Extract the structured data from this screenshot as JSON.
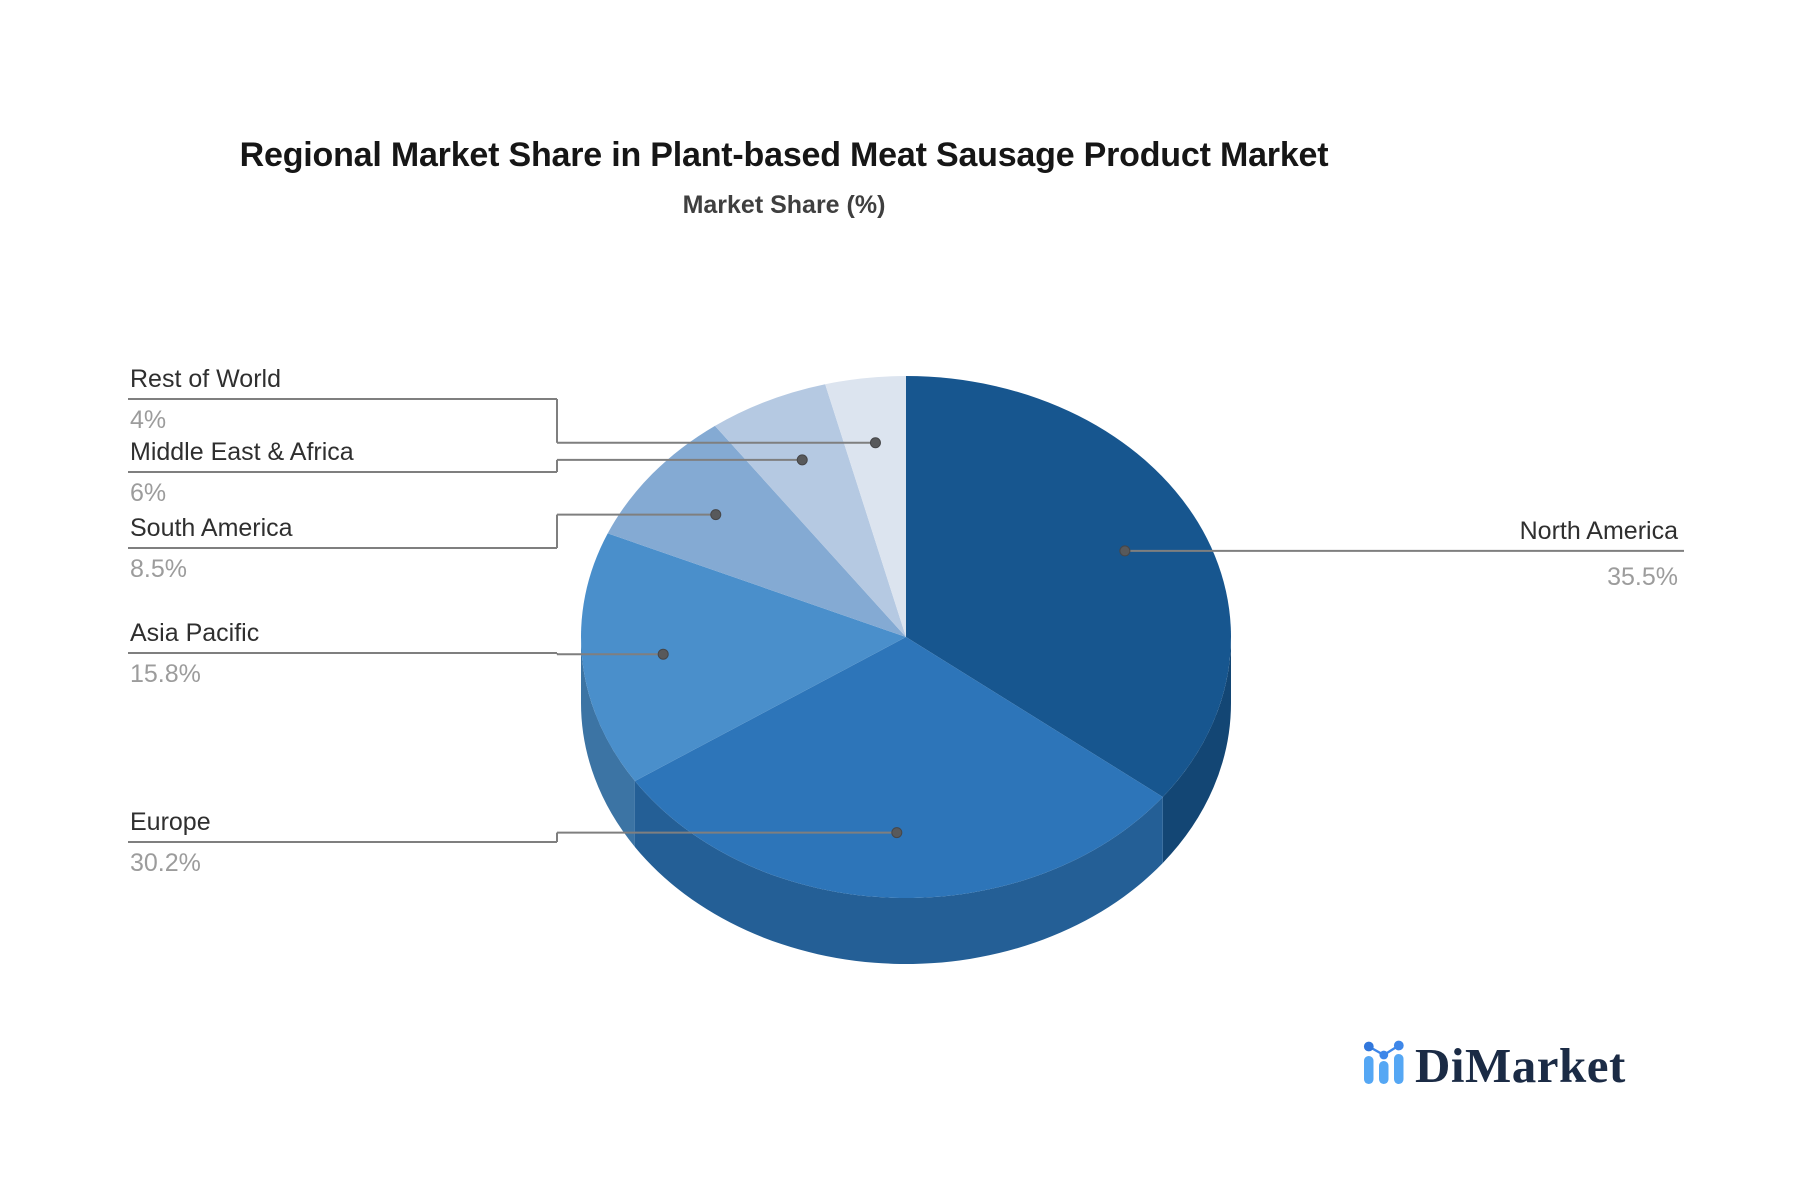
{
  "chart": {
    "title": "Regional Market Share in Plant-based Meat Sausage Product Market",
    "subtitle": "Market Share (%)",
    "chart_data": {
      "type": "pie",
      "style_3d": true,
      "unit": "%",
      "start_angle_deg": 0,
      "direction": "clockwise",
      "legend": "none",
      "series": [
        {
          "label": "North America",
          "value": 35.5,
          "display": "35.5%",
          "color": "#17568F",
          "label_side": "right"
        },
        {
          "label": "Europe",
          "value": 30.2,
          "display": "30.2%",
          "color": "#2D75B9",
          "label_side": "left"
        },
        {
          "label": "Asia Pacific",
          "value": 15.8,
          "display": "15.8%",
          "color": "#4A8FCB",
          "label_side": "left"
        },
        {
          "label": "South America",
          "value": 8.5,
          "display": "8.5%",
          "color": "#84AAD3",
          "label_side": "left"
        },
        {
          "label": "Middle East & Africa",
          "value": 6,
          "display": "6%",
          "color": "#B5C9E2",
          "label_side": "left"
        },
        {
          "label": "Rest of World",
          "value": 4,
          "display": "4%",
          "color": "#DCE4EF",
          "label_side": "left"
        }
      ],
      "style": {
        "leader_line_color": "#7f7f7f",
        "leader_dot_color": "#58595b",
        "label_name_color": "#2f2f2f",
        "label_value_color": "#9c9c9c",
        "background": "#ffffff"
      }
    }
  },
  "branding": {
    "logo_text": "DiMarket",
    "logo_icon": "bar-chart-with-trend-line-icon",
    "icon_bar_color": "#55A7F4",
    "icon_dot_color": "#3E87E9",
    "text_color": "#1B2B45"
  }
}
